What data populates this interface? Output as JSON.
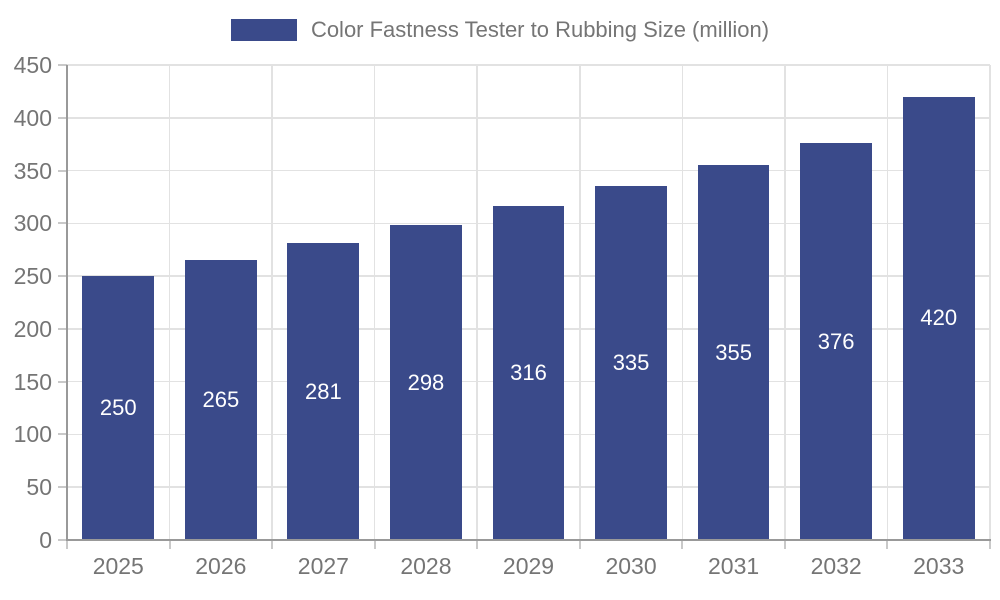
{
  "legend": {
    "label": "Color Fastness Tester to Rubbing Size (million)"
  },
  "chart_data": {
    "type": "bar",
    "title": "Color Fastness Tester to Rubbing Size (million)",
    "xlabel": "",
    "ylabel": "",
    "categories": [
      "2025",
      "2026",
      "2027",
      "2028",
      "2029",
      "2030",
      "2031",
      "2032",
      "2033"
    ],
    "values": [
      250,
      265,
      281,
      298,
      316,
      335,
      355,
      376,
      420
    ],
    "series": [
      {
        "name": "Color Fastness Tester to Rubbing Size (million)",
        "values": [
          250,
          265,
          281,
          298,
          316,
          335,
          355,
          376,
          420
        ]
      }
    ],
    "ylim": [
      0,
      450
    ],
    "yticks": [
      0,
      50,
      100,
      150,
      200,
      250,
      300,
      350,
      400,
      450
    ],
    "grid": true,
    "legend_position": "top-center",
    "bar_label_position": "inside-center",
    "colors": {
      "bar": "#3A4A8A",
      "axis": "#999999",
      "tick": "#C9C9C9",
      "grid": "#E2E2E2",
      "tick_label": "#757575",
      "legend_label": "#757575",
      "value_label": "#FFFFFF",
      "background": "#FFFFFF"
    }
  }
}
